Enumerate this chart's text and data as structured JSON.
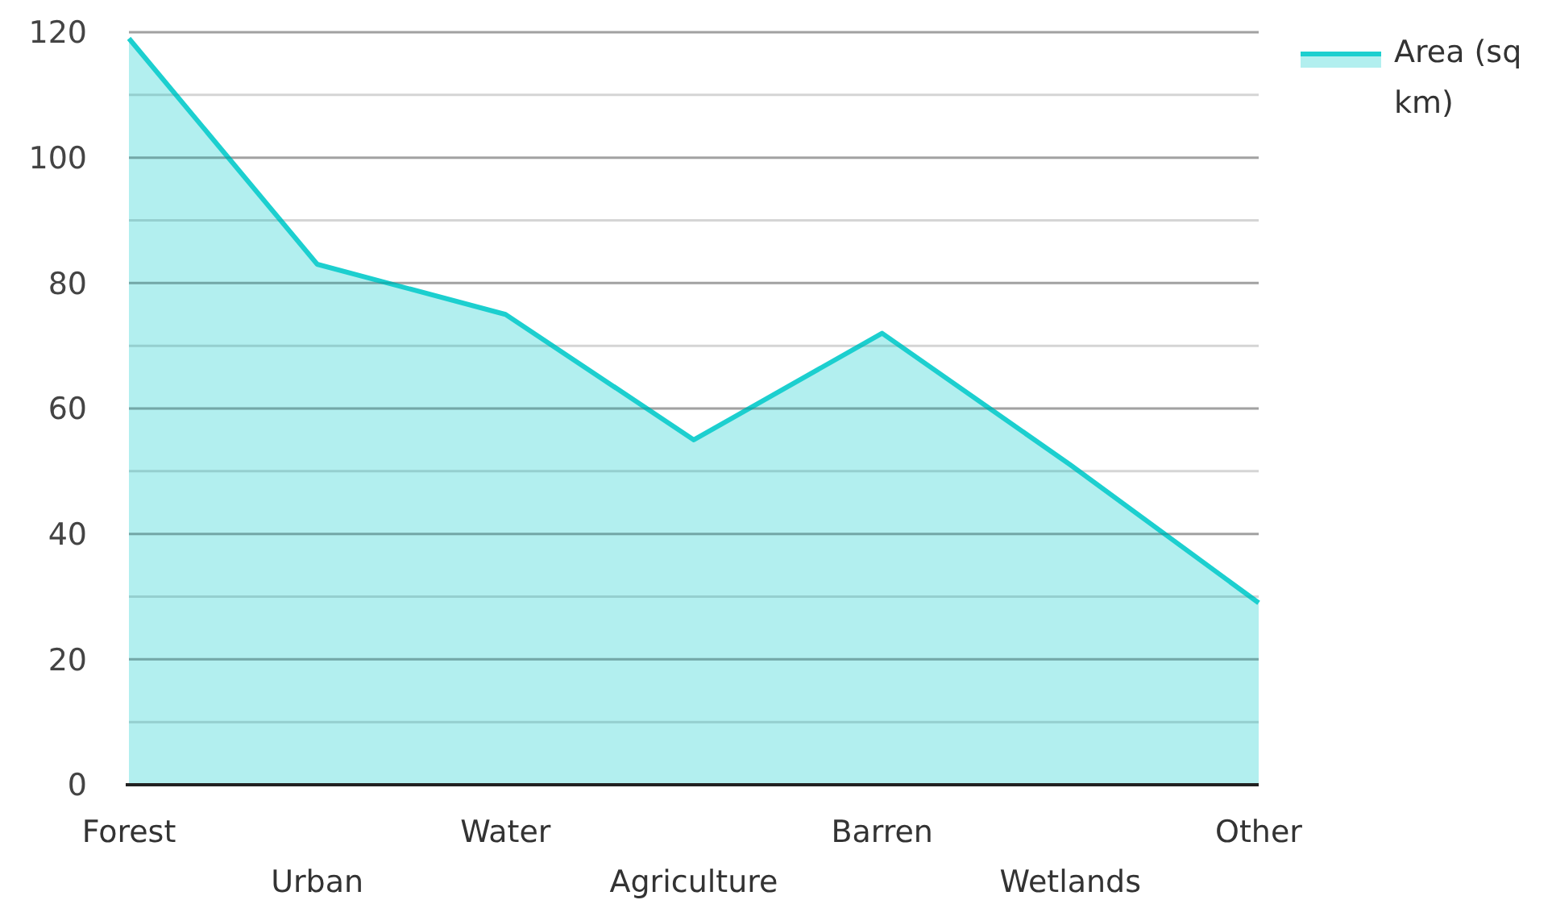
{
  "chart_data": {
    "type": "area",
    "categories": [
      "Forest",
      "Urban",
      "Water",
      "Agriculture",
      "Barren",
      "Wetlands",
      "Other"
    ],
    "series": [
      {
        "name": "Area (sq km)",
        "color": "#1ccfcf",
        "values": [
          119,
          83,
          75,
          55,
          72,
          51,
          29
        ]
      }
    ],
    "ylim": [
      0,
      120
    ],
    "yticks": [
      0,
      {
        "value": 10,
        "label": null
      },
      20,
      {
        "value": 30,
        "label": null
      },
      40,
      {
        "value": 50,
        "label": null
      },
      60,
      {
        "value": 70,
        "label": null
      },
      80,
      {
        "value": 90,
        "label": null
      },
      100,
      {
        "value": 110,
        "label": null
      },
      120
    ],
    "grid": "y",
    "legend": "top right"
  }
}
